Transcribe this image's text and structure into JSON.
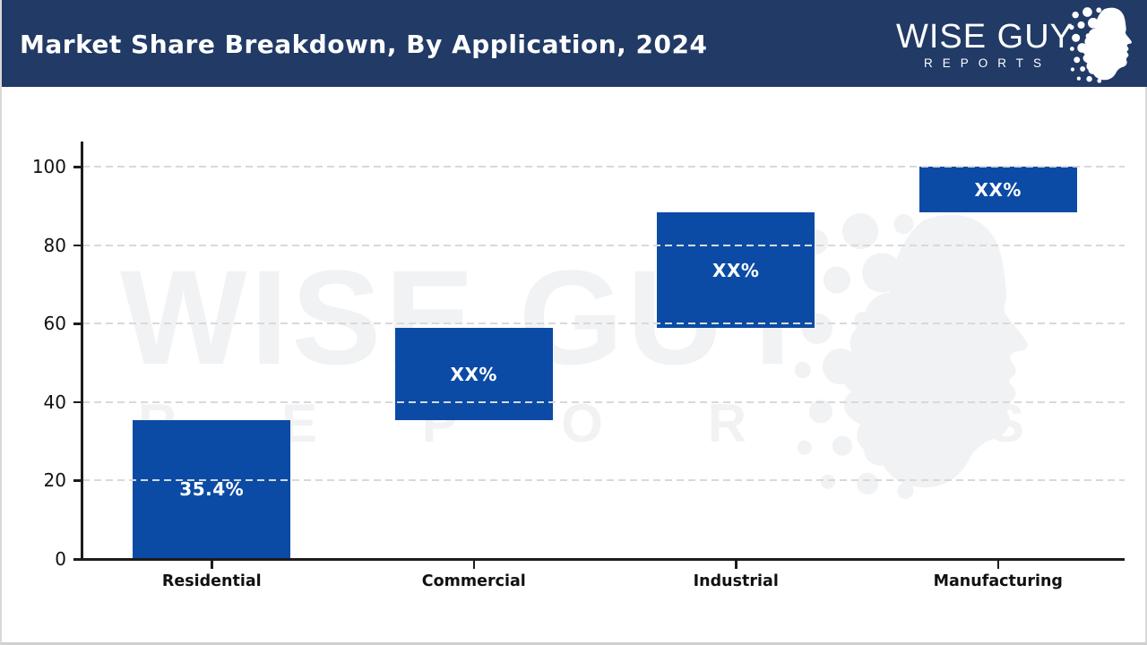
{
  "header": {
    "title": "Market Share Breakdown, By Application, 2024",
    "bg_color": "#213a66",
    "logo": {
      "primary": "WISE GUY",
      "secondary": "REPORTS"
    }
  },
  "watermark": {
    "primary": "WISE GUY",
    "secondary": "R E P O R T S"
  },
  "chart_data": {
    "type": "bar",
    "subtype": "floating-segment-waterfall",
    "title": "Market Share Breakdown, By Application, 2024",
    "categories": [
      "Residential",
      "Commercial",
      "Industrial",
      "Manufacturing"
    ],
    "segments": [
      {
        "category": "Residential",
        "start": 0,
        "end": 35.4,
        "label": "35.4%"
      },
      {
        "category": "Commercial",
        "start": 35.4,
        "end": 58.8,
        "label": "XX%"
      },
      {
        "category": "Industrial",
        "start": 58.8,
        "end": 88.3,
        "label": "XX%"
      },
      {
        "category": "Manufacturing",
        "start": 88.3,
        "end": 100,
        "label": "XX%"
      }
    ],
    "xlabel": "",
    "ylabel": "",
    "ylim": [
      0,
      100
    ],
    "yticks": [
      0,
      20,
      40,
      60,
      80,
      100
    ],
    "grid": "horizontal-dashed",
    "legend": "none",
    "bar_color": "#0b4ba5",
    "bar_label_color": "#ffffff"
  }
}
